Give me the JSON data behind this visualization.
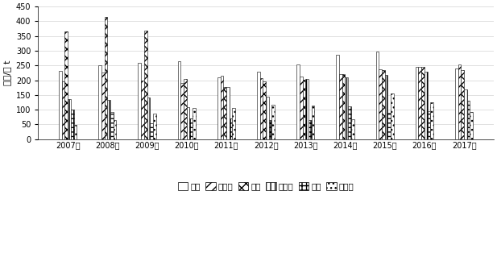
{
  "years": [
    "2007年",
    "2008年",
    "2009年",
    "2010年",
    "2011年",
    "2012年",
    "2013年",
    "2014年",
    "2015年",
    "2016年",
    "2017年"
  ],
  "series": {
    "印度": [
      232,
      251,
      258,
      264,
      210,
      230,
      254,
      285,
      297,
      246,
      240
    ],
    "墨西哥": [
      195,
      226,
      200,
      190,
      215,
      207,
      213,
      220,
      237,
      244,
      253
    ],
    "中国": [
      365,
      415,
      368,
      203,
      177,
      196,
      202,
      222,
      234,
      244,
      234
    ],
    "阿根廷": [
      135,
      133,
      140,
      108,
      178,
      145,
      205,
      210,
      219,
      230,
      168
    ],
    "巴西": [
      100,
      93,
      53,
      70,
      70,
      65,
      65,
      110,
      90,
      95,
      130
    ],
    "西班牙": [
      47,
      65,
      88,
      105,
      107,
      118,
      115,
      68,
      155,
      125,
      91
    ]
  },
  "ylim": [
    0,
    450
  ],
  "yticks": [
    0,
    50,
    100,
    150,
    200,
    250,
    300,
    350,
    400,
    450
  ],
  "ylabel": "产量/万 t",
  "hatch_patterns": [
    "",
    "///",
    "xxx",
    "|||",
    "+++",
    "..."
  ],
  "bar_width": 0.075,
  "figsize": [
    6.17,
    3.14
  ],
  "dpi": 100
}
